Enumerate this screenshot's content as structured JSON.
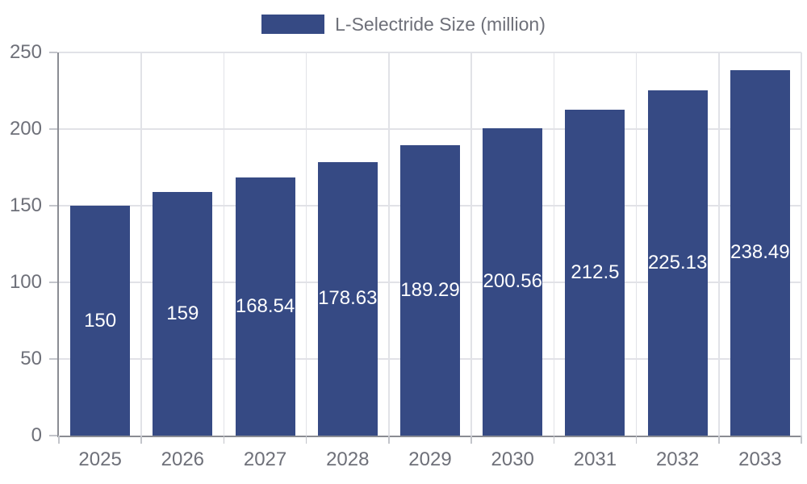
{
  "chart_data": {
    "type": "bar",
    "title": "",
    "legend": "L-Selectride Size (million)",
    "categories": [
      "2025",
      "2026",
      "2027",
      "2028",
      "2029",
      "2030",
      "2031",
      "2032",
      "2033"
    ],
    "values": [
      150,
      159,
      168.54,
      178.63,
      189.29,
      200.56,
      212.5,
      225.13,
      238.49
    ],
    "value_labels": [
      "150",
      "159",
      "168.54",
      "178.63",
      "189.29",
      "200.56",
      "212.5",
      "225.13",
      "238.49"
    ],
    "xlabel": "",
    "ylabel": "",
    "ylim": [
      0,
      250
    ],
    "yticks": [
      0,
      50,
      100,
      150,
      200,
      250
    ],
    "grid": true,
    "legend_position": "top-center",
    "colors": {
      "bar": "#364A84",
      "value_label": "#ffffff",
      "axis_text": "#6e7079",
      "axis_line": "#8a8c93",
      "grid_line": "#e1e2e7",
      "tick": "#c3c5cb",
      "background": "#ffffff"
    }
  }
}
